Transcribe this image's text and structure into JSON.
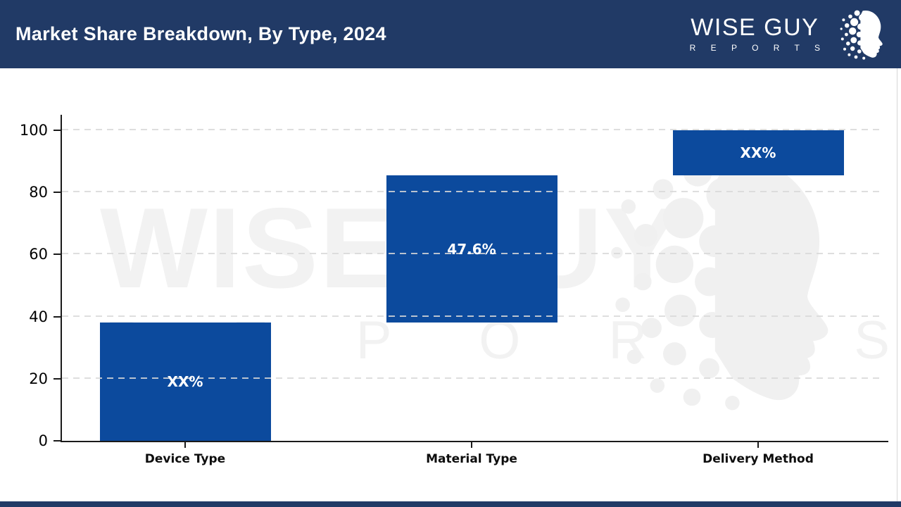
{
  "header": {
    "title": "Market Share Breakdown, By Type, 2024",
    "logo": {
      "line1": "WISE GUY",
      "line2": "R E P O R T S",
      "face_icon": "dotted-face-profile"
    }
  },
  "watermark": {
    "line1": "WISE GUY",
    "line2": "R E P O R T S",
    "face_icon": "dotted-face-profile"
  },
  "colors": {
    "header_bg": "#213a66",
    "bar": "#0c4a9d",
    "grid": "#d8d8d8",
    "axis": "#1a1a1a",
    "bar_label": "#ffffff",
    "tick_text": "#000000",
    "watermark_text": "#f2f2f2"
  },
  "chart_data": {
    "type": "bar",
    "subtype": "stacked-percentage-waterfall",
    "title": "Market Share Breakdown, By Type, 2024",
    "categories": [
      "Device Type",
      "Material Type",
      "Delivery Method"
    ],
    "bars": [
      {
        "category": "Device Type",
        "start": 0,
        "end": 38,
        "label": "XX%"
      },
      {
        "category": "Material Type",
        "start": 38,
        "end": 85.6,
        "label": "47.6%"
      },
      {
        "category": "Delivery Method",
        "start": 85.6,
        "end": 100,
        "label": "XX%"
      }
    ],
    "yticks": [
      0,
      20,
      40,
      60,
      80,
      100
    ],
    "ylim": [
      0,
      105
    ],
    "grid": "dashed-horizontal",
    "legend": "none",
    "xlabel": "",
    "ylabel": ""
  }
}
